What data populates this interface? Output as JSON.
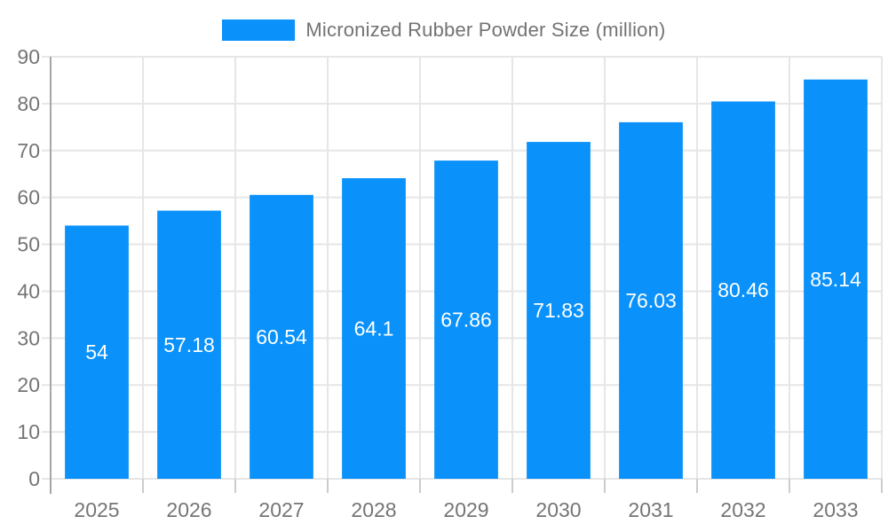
{
  "chart_data": {
    "type": "bar",
    "title": "Micronized Rubber Powder Size (million)",
    "categories": [
      "2025",
      "2026",
      "2027",
      "2028",
      "2029",
      "2030",
      "2031",
      "2032",
      "2033"
    ],
    "values": [
      54,
      57.18,
      60.54,
      64.1,
      67.86,
      71.83,
      76.03,
      80.46,
      85.14
    ],
    "value_labels": [
      "54",
      "57.18",
      "60.54",
      "64.1",
      "67.86",
      "71.83",
      "76.03",
      "80.46",
      "85.14"
    ],
    "ytick_labels": [
      "0",
      "10",
      "20",
      "30",
      "40",
      "50",
      "60",
      "70",
      "80",
      "90"
    ],
    "xlabel": "",
    "ylabel": "",
    "ylim": [
      0,
      90
    ],
    "ytick_step": 10,
    "grid": true,
    "legend_position": "top-center",
    "colors": {
      "bar": "#0a91fa",
      "grid": "#e6e6e6",
      "axis_line": "#a6a6a6",
      "tick": "#cccccc",
      "label_text": "#757575",
      "value_text": "#ffffff",
      "title_text": "#737373",
      "background": "#ffffff"
    }
  }
}
